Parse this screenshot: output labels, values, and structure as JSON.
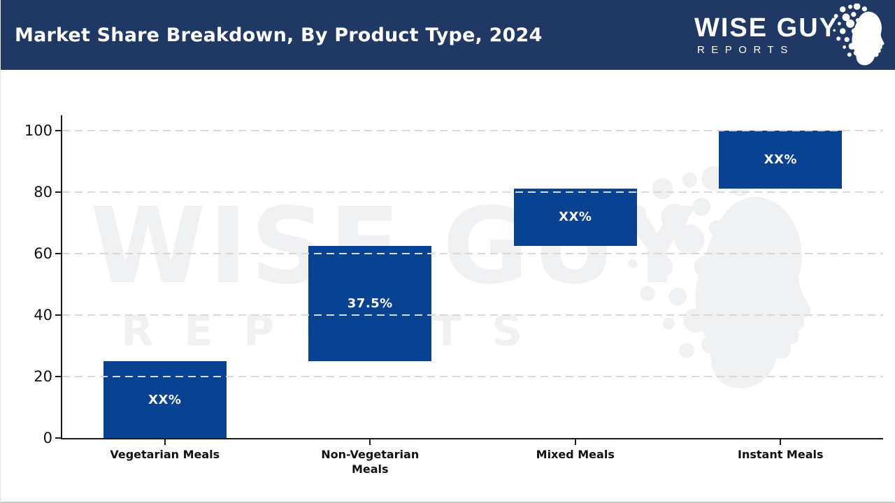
{
  "header": {
    "title": "Market Share Breakdown, By Product Type, 2024",
    "logo": {
      "wordmark": "WISE GUY",
      "subtext": "REPORTS"
    }
  },
  "watermark": {
    "line1": "WISE GUY",
    "line2": "REPORTS"
  },
  "colors": {
    "header_bg": "#203864",
    "bar_fill": "#084291",
    "bar_label_text": "#ffffff",
    "axis": "#1c1c1c",
    "grid": "#d9d9d9",
    "watermark": "#f0f1f3",
    "title_text": "#ffffff"
  },
  "chart_data": {
    "type": "bar",
    "subtype": "waterfall",
    "title": "Market Share Breakdown, By Product Type, 2024",
    "categories": [
      "Vegetarian Meals",
      "Non-Vegetarian Meals",
      "Mixed Meals",
      "Instant Meals"
    ],
    "series": [
      {
        "name": "Market share (%)",
        "bars": [
          {
            "category": "Vegetarian Meals",
            "start": 0,
            "end": 25,
            "label": "XX%"
          },
          {
            "category": "Non-Vegetarian Meals",
            "start": 25,
            "end": 62.5,
            "label": "37.5%"
          },
          {
            "category": "Mixed Meals",
            "start": 62.5,
            "end": 81.25,
            "label": "XX%"
          },
          {
            "category": "Instant Meals",
            "start": 81.25,
            "end": 100,
            "label": "XX%"
          }
        ]
      }
    ],
    "yticks": [
      0,
      20,
      40,
      60,
      80,
      100
    ],
    "ylim": [
      0,
      105
    ],
    "xlabel": "",
    "ylabel": "",
    "grid": "horizontal-dashed",
    "legend": false
  }
}
